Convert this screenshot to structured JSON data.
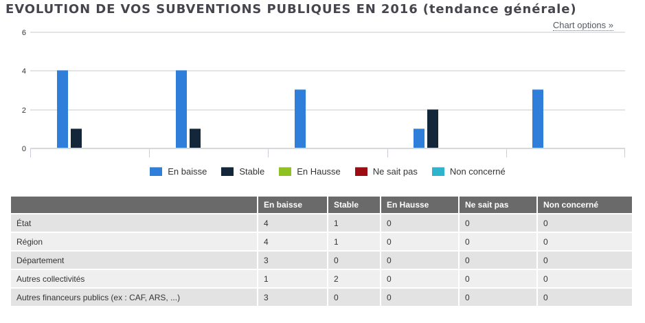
{
  "title": "EVOLUTION DE VOS SUBVENTIONS PUBLIQUES EN 2016 (tendance générale)",
  "chart_options_label": "Chart options »",
  "chart_data": {
    "type": "bar",
    "title": "EVOLUTION DE VOS SUBVENTIONS PUBLIQUES EN 2016 (tendance générale)",
    "categories": [
      "État",
      "Région",
      "Département",
      "Autres collectivités",
      "Autres financeurs publics (ex : CAF, ARS, ...)"
    ],
    "series": [
      {
        "name": "En baisse",
        "color": "#2f7ed9",
        "values": [
          4,
          4,
          3,
          1,
          3
        ]
      },
      {
        "name": "Stable",
        "color": "#13263a",
        "values": [
          1,
          1,
          0,
          2,
          0
        ]
      },
      {
        "name": "En Hausse",
        "color": "#8fc122",
        "values": [
          0,
          0,
          0,
          0,
          0
        ]
      },
      {
        "name": "Ne sait pas",
        "color": "#9c0c12",
        "values": [
          0,
          0,
          0,
          0,
          0
        ]
      },
      {
        "name": "Non concerné",
        "color": "#2fb4cd",
        "values": [
          0,
          0,
          0,
          0,
          0
        ]
      }
    ],
    "xlabel": "",
    "ylabel": "",
    "ylim": [
      0,
      6
    ],
    "yticks": [
      0,
      2,
      4,
      6
    ],
    "grid": true,
    "legend_position": "bottom",
    "x_tick_labels_visible": false
  },
  "table": {
    "columns": [
      "",
      "En baisse",
      "Stable",
      "En Hausse",
      "Ne sait pas",
      "Non concerné"
    ],
    "rows": [
      {
        "label": "État",
        "values": [
          "4",
          "1",
          "0",
          "0",
          "0"
        ]
      },
      {
        "label": "Région",
        "values": [
          "4",
          "1",
          "0",
          "0",
          "0"
        ]
      },
      {
        "label": "Département",
        "values": [
          "3",
          "0",
          "0",
          "0",
          "0"
        ]
      },
      {
        "label": "Autres collectivités",
        "values": [
          "1",
          "2",
          "0",
          "0",
          "0"
        ]
      },
      {
        "label": "Autres financeurs publics (ex : CAF, ARS, ...)",
        "values": [
          "3",
          "0",
          "0",
          "0",
          "0"
        ]
      }
    ]
  }
}
